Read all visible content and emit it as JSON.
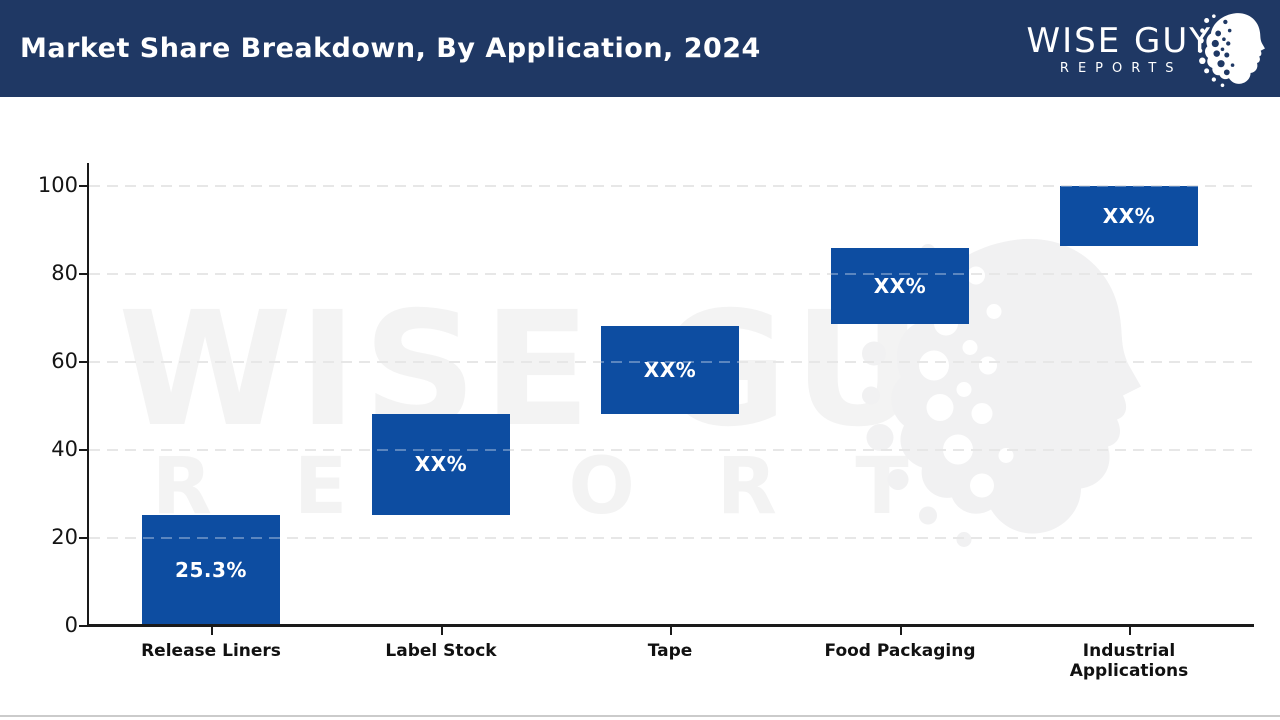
{
  "header": {
    "title": "Market Share Breakdown, By Application, 2024",
    "logo": {
      "line1": "WISE GUY",
      "line2": "REPORTS"
    }
  },
  "watermark": {
    "line1": "WISE GUY",
    "line2": "REPORTS"
  },
  "chart_data": {
    "type": "bar",
    "subtype": "waterfall",
    "title": "Market Share Breakdown, By Application, 2024",
    "categories": [
      "Release Liners",
      "Label Stock",
      "Tape",
      "Food Packaging",
      "Industrial Applications"
    ],
    "segments": [
      [
        0,
        25.3
      ],
      [
        25.3,
        48.2
      ],
      [
        48.2,
        68.2
      ],
      [
        68.6,
        86.0
      ],
      [
        86.4,
        100
      ]
    ],
    "bar_labels": [
      "25.3%",
      "XX%",
      "XX%",
      "XX%",
      "XX%"
    ],
    "y_ticks": [
      0,
      20,
      40,
      60,
      80,
      100
    ],
    "ylim": [
      0,
      105
    ],
    "xlabel": "",
    "ylabel": "",
    "grid": "horizontal-dashed",
    "legend": "none",
    "bar_color": "#0d4da1",
    "header_color": "#1f3864"
  }
}
